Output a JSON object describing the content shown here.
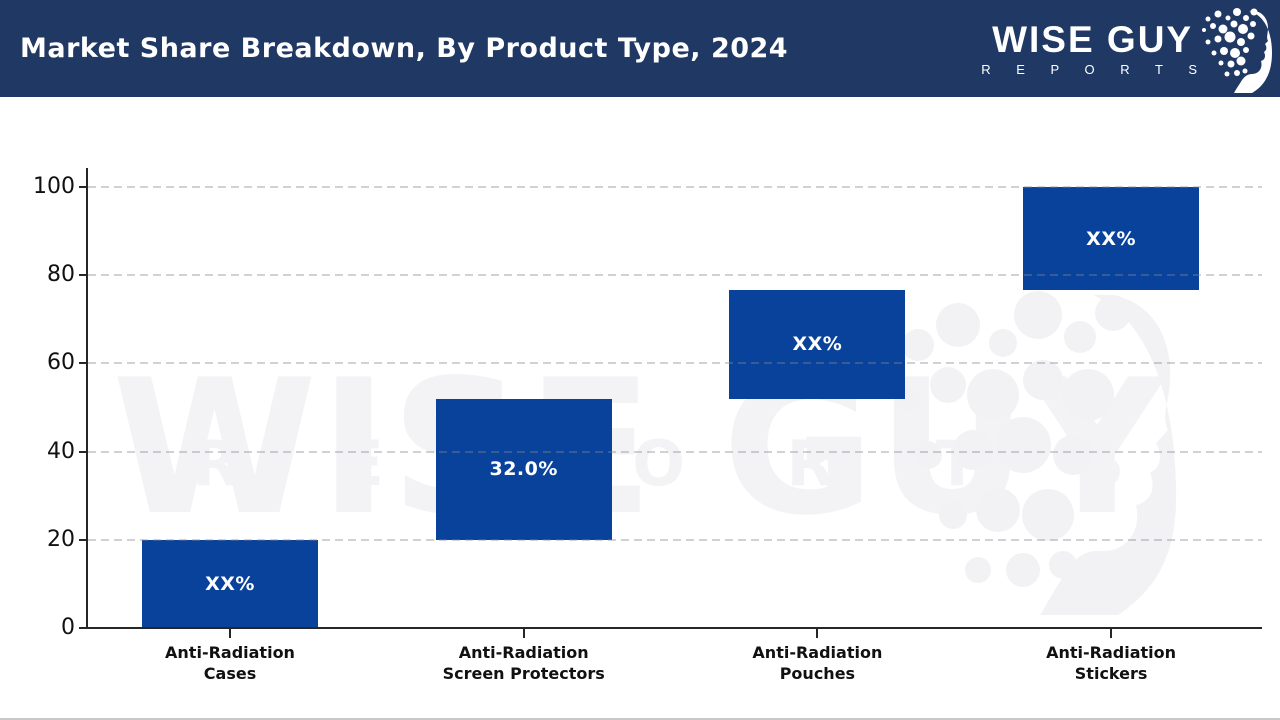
{
  "header": {
    "title": "Market Share Breakdown, By Product Type, 2024",
    "bg_color": "#1f3864",
    "logo": {
      "line1": "WISE GUY",
      "line2": "R E P O R T S"
    }
  },
  "watermark": {
    "line1": "WISE GUY",
    "line2": "R E P O R T S"
  },
  "chart_data": {
    "type": "bar",
    "subtype": "waterfall",
    "title": "Market Share Breakdown, By Product Type, 2024",
    "categories": [
      "Anti-Radiation\nCases",
      "Anti-Radiation\nScreen Protectors",
      "Anti-Radiation\nPouches",
      "Anti-Radiation\nStickers"
    ],
    "segments": [
      {
        "start": 0,
        "end": 20
      },
      {
        "start": 20,
        "end": 52
      },
      {
        "start": 52,
        "end": 76.6
      },
      {
        "start": 76.6,
        "end": 100
      }
    ],
    "bar_labels": [
      "XX%",
      "32.0%",
      "XX%",
      "XX%"
    ],
    "yticks": [
      0,
      20,
      40,
      60,
      80,
      100
    ],
    "ylim": [
      0,
      100
    ],
    "xlabel": "",
    "ylabel": "",
    "grid": true,
    "gridline_style": "dashed",
    "bar_color": "#09429b",
    "bar_label_color": "#ffffff",
    "legend": "none"
  }
}
